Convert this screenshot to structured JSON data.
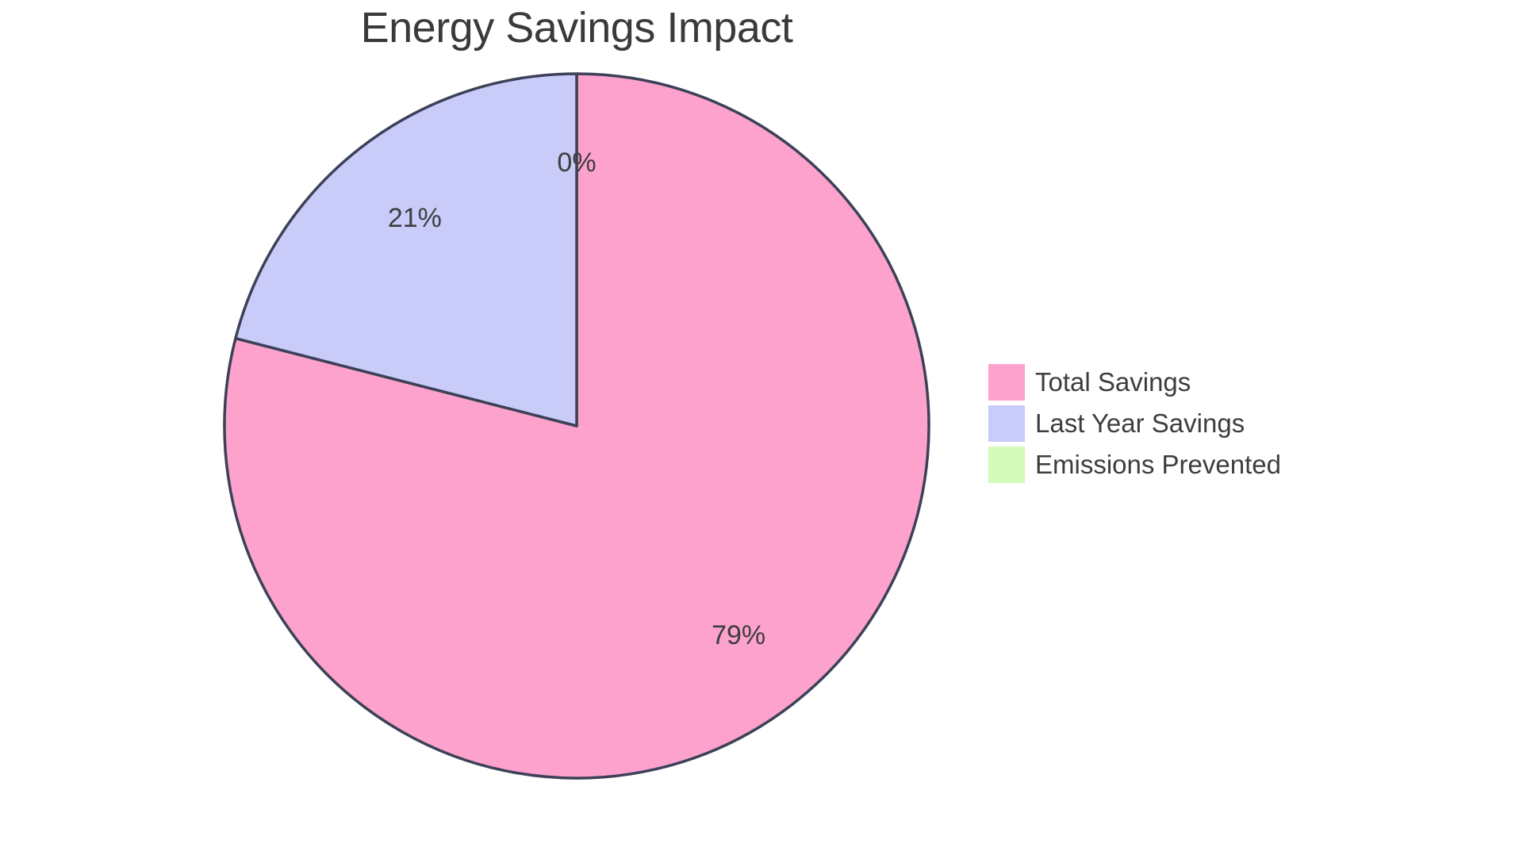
{
  "chart_data": {
    "type": "pie",
    "title": "Energy Savings Impact",
    "slices": [
      {
        "label": "Total Savings",
        "value": 79,
        "pct_label": "79%",
        "color": "#FCA2CD"
      },
      {
        "label": "Last Year Savings",
        "value": 21,
        "pct_label": "21%",
        "color": "#C9CBF9"
      },
      {
        "label": "Emissions Prevented",
        "value": 0,
        "pct_label": "0%",
        "color": "#D4F9B8"
      }
    ],
    "total": 100,
    "start_position": "top",
    "direction": "clockwise",
    "labels_format": "percent",
    "legend_position": "right",
    "slice_border_color": "#3C4157",
    "label_text_color": "#3E3E3E",
    "title_color": "#3A3A3A",
    "background_color": "#FFFFFF"
  }
}
